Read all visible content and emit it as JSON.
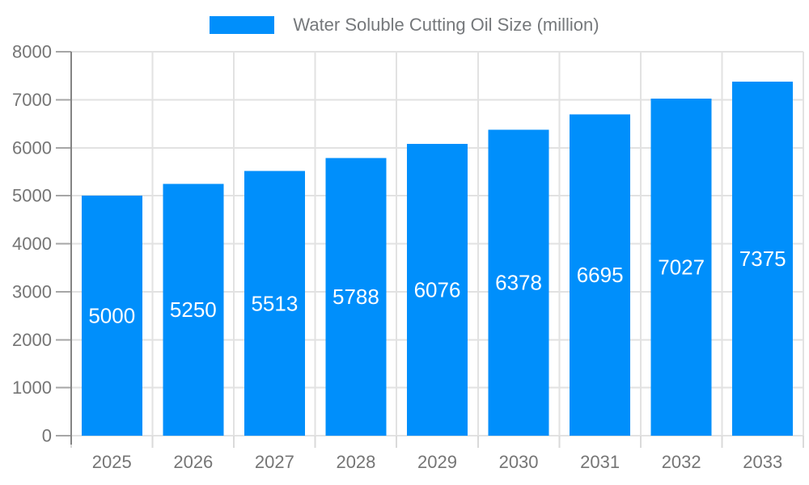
{
  "legend": {
    "label": "Water Soluble Cutting Oil Size (million)"
  },
  "colors": {
    "bar": "#008FFB",
    "axis_label_text": "#757575",
    "legend_text": "#75787b",
    "grid": "#e2e2e2",
    "axis_line": "#848484",
    "y_tick": "#a6a6a6",
    "x_tick": "#dadada",
    "data_label": "#ffffff",
    "background": "#ffffff"
  },
  "chart_data": {
    "type": "bar",
    "title": "",
    "xlabel": "",
    "ylabel": "",
    "series_name": "Water Soluble Cutting Oil Size (million)",
    "categories": [
      "2025",
      "2026",
      "2027",
      "2028",
      "2029",
      "2030",
      "2031",
      "2032",
      "2033"
    ],
    "values": [
      5000,
      5250,
      5513,
      5788,
      6076,
      6378,
      6695,
      7027,
      7375
    ],
    "data_labels_shown": true,
    "ylim": [
      0,
      8000
    ],
    "ytick_interval": 1000,
    "yticks": [
      0,
      1000,
      2000,
      3000,
      4000,
      5000,
      6000,
      7000,
      8000
    ],
    "grid": true,
    "legend_position": "top"
  }
}
